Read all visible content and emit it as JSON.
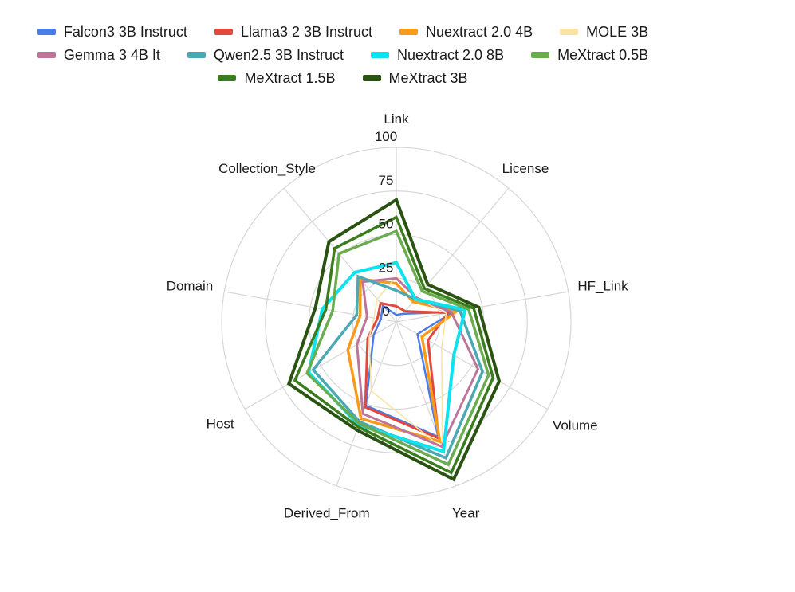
{
  "chart_data": {
    "type": "radar",
    "title": "",
    "categories": [
      "Link",
      "License",
      "HF_Link",
      "Volume",
      "Year",
      "Derived_From",
      "Host",
      "Domain",
      "Collection_Style"
    ],
    "ticks": [
      "0",
      "25",
      "50",
      "75",
      "100"
    ],
    "rlim": [
      0,
      100
    ],
    "grid": true,
    "grid_color": "#d9d9d9",
    "legend_position": "top",
    "series": [
      {
        "name": "Falcon3 3B Instruct",
        "color": "#4a7ce8",
        "width": 2.5,
        "values": [
          4,
          6,
          33,
          14,
          70,
          51,
          15,
          9,
          12
        ]
      },
      {
        "name": "Llama3 2 3B Instruct",
        "color": "#e2483c",
        "width": 3,
        "values": [
          9,
          8,
          30,
          21,
          71,
          52,
          19,
          11,
          14
        ]
      },
      {
        "name": "Nuextract 2.0 4B",
        "color": "#f89b1b",
        "width": 3.5,
        "values": [
          22,
          15,
          35,
          17,
          73,
          59,
          32,
          21,
          32
        ]
      },
      {
        "name": "MOLE 3B",
        "color": "#f8e3a3",
        "width": 1.5,
        "values": [
          26,
          18,
          29,
          30,
          77,
          42,
          18,
          13,
          17
        ]
      },
      {
        "name": "Gemma 3 4B It",
        "color": "#bc7699",
        "width": 3,
        "values": [
          25,
          18,
          32,
          54,
          76,
          56,
          26,
          17,
          30
        ]
      },
      {
        "name": "Qwen2.5 3B Instruct",
        "color": "#4ba8b5",
        "width": 3.5,
        "values": [
          18,
          17,
          37,
          57,
          83,
          61,
          55,
          23,
          34
        ]
      },
      {
        "name": "Nuextract 2.0 8B",
        "color": "#0ce3ee",
        "width": 4,
        "values": [
          34,
          17,
          40,
          38,
          79,
          63,
          58,
          43,
          37
        ]
      },
      {
        "name": "MeXtract 0.5B",
        "color": "#6cac51",
        "width": 3.5,
        "values": [
          52,
          23,
          42,
          61,
          87,
          62,
          59,
          37,
          51
        ]
      },
      {
        "name": "MeXtract 1.5B",
        "color": "#3b7d1e",
        "width": 3.5,
        "values": [
          60,
          25,
          45,
          64,
          92,
          64,
          67,
          41,
          55
        ]
      },
      {
        "name": "MeXtract 3B",
        "color": "#2a5212",
        "width": 4,
        "values": [
          70,
          28,
          48,
          68,
          96,
          66,
          71,
          47,
          60
        ]
      }
    ],
    "legend_rows": [
      [
        0,
        1,
        2,
        3
      ],
      [
        4,
        5,
        6,
        7
      ],
      [
        8,
        9
      ]
    ]
  }
}
